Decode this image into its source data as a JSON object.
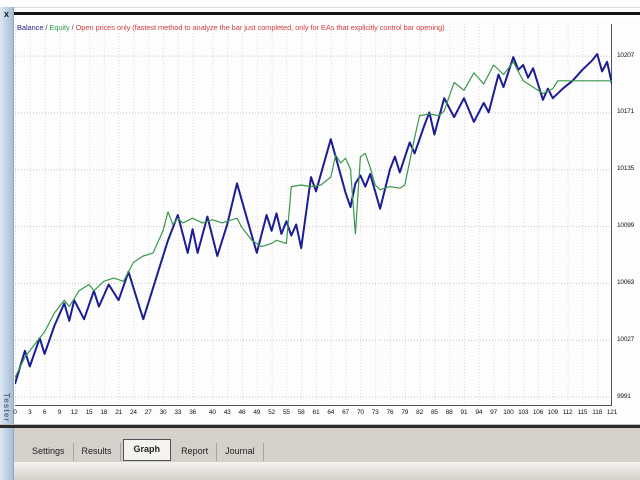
{
  "panel": {
    "side_tab_label": "Tester",
    "close_glyph": "x"
  },
  "legend": {
    "balance_label": "Balance",
    "equity_label": "Equity",
    "separator": " / ",
    "mode_text": "Open prices only (fastest method to analyze the bar just completed, only for EAs that explicitly control bar opening)"
  },
  "colors": {
    "balance": "#1c1c94",
    "equity": "#39984d",
    "mode_text": "#d04040",
    "grid_horizontal": "#c6c6c6",
    "grid_vertical": "#dcdcdc",
    "axis": "#555555"
  },
  "tabs": {
    "items": [
      {
        "label": "Settings",
        "active": false
      },
      {
        "label": "Results",
        "active": false
      },
      {
        "label": "Graph",
        "active": true
      },
      {
        "label": "Report",
        "active": false
      },
      {
        "label": "Journal",
        "active": false
      }
    ]
  },
  "chart_data": {
    "type": "line",
    "xlim": [
      0,
      121
    ],
    "ylim": [
      9985,
      10227
    ],
    "grid": true,
    "legend_position": "top-left",
    "x_ticks": [
      0,
      3,
      6,
      9,
      12,
      15,
      18,
      21,
      24,
      27,
      30,
      33,
      36,
      40,
      43,
      46,
      49,
      52,
      55,
      58,
      61,
      64,
      67,
      70,
      73,
      76,
      79,
      82,
      85,
      88,
      91,
      94,
      97,
      100,
      103,
      106,
      109,
      112,
      115,
      118,
      121
    ],
    "y_ticks": [
      10207,
      10171,
      10135,
      10099,
      10063,
      10027,
      9991
    ],
    "series": [
      {
        "name": "Balance",
        "color": "#1c1c94",
        "width": 2,
        "points": [
          [
            0,
            9999
          ],
          [
            2,
            10020
          ],
          [
            3,
            10010
          ],
          [
            5,
            10028
          ],
          [
            6,
            10018
          ],
          [
            8,
            10036
          ],
          [
            10,
            10050
          ],
          [
            11,
            10039
          ],
          [
            12,
            10052
          ],
          [
            14,
            10040
          ],
          [
            16,
            10058
          ],
          [
            17,
            10048
          ],
          [
            19,
            10062
          ],
          [
            21,
            10052
          ],
          [
            23,
            10070
          ],
          [
            25,
            10050
          ],
          [
            26,
            10040
          ],
          [
            29,
            10070
          ],
          [
            31,
            10090
          ],
          [
            33,
            10106
          ],
          [
            35,
            10082
          ],
          [
            36,
            10097
          ],
          [
            37,
            10082
          ],
          [
            39,
            10105
          ],
          [
            41,
            10080
          ],
          [
            43,
            10100
          ],
          [
            45,
            10126
          ],
          [
            47,
            10104
          ],
          [
            49,
            10082
          ],
          [
            51,
            10106
          ],
          [
            52,
            10096
          ],
          [
            53,
            10107
          ],
          [
            54,
            10094
          ],
          [
            55,
            10102
          ],
          [
            56,
            10093
          ],
          [
            57,
            10100
          ],
          [
            58,
            10085
          ],
          [
            60,
            10130
          ],
          [
            61,
            10121
          ],
          [
            64,
            10154
          ],
          [
            67,
            10120
          ],
          [
            68,
            10111
          ],
          [
            69,
            10126
          ],
          [
            70,
            10131
          ],
          [
            71,
            10124
          ],
          [
            72,
            10132
          ],
          [
            74,
            10110
          ],
          [
            76,
            10135
          ],
          [
            77,
            10143
          ],
          [
            78,
            10133
          ],
          [
            80,
            10152
          ],
          [
            81,
            10145
          ],
          [
            83,
            10163
          ],
          [
            84,
            10171
          ],
          [
            85,
            10157
          ],
          [
            87,
            10180
          ],
          [
            89,
            10168
          ],
          [
            91,
            10180
          ],
          [
            93,
            10165
          ],
          [
            95,
            10177
          ],
          [
            96,
            10171
          ],
          [
            98,
            10195
          ],
          [
            99,
            10187
          ],
          [
            101,
            10206
          ],
          [
            102,
            10198
          ],
          [
            103,
            10201
          ],
          [
            104,
            10193
          ],
          [
            105,
            10199
          ],
          [
            107,
            10179
          ],
          [
            108,
            10186
          ],
          [
            109,
            10180
          ],
          [
            111,
            10186
          ],
          [
            113,
            10191
          ],
          [
            115,
            10198
          ],
          [
            117,
            10204
          ],
          [
            118,
            10208
          ],
          [
            119,
            10197
          ],
          [
            120,
            10203
          ],
          [
            121,
            10189
          ]
        ]
      },
      {
        "name": "Equity",
        "color": "#39984d",
        "width": 1.2,
        "points": [
          [
            0,
            10003
          ],
          [
            2,
            10016
          ],
          [
            4,
            10024
          ],
          [
            6,
            10032
          ],
          [
            8,
            10044
          ],
          [
            10,
            10052
          ],
          [
            11,
            10048
          ],
          [
            13,
            10058
          ],
          [
            15,
            10062
          ],
          [
            16,
            10058
          ],
          [
            18,
            10064
          ],
          [
            20,
            10066
          ],
          [
            22,
            10064
          ],
          [
            24,
            10076
          ],
          [
            26,
            10080
          ],
          [
            28,
            10082
          ],
          [
            30,
            10096
          ],
          [
            31,
            10108
          ],
          [
            32,
            10100
          ],
          [
            33,
            10104
          ],
          [
            34,
            10101
          ],
          [
            36,
            10104
          ],
          [
            38,
            10101
          ],
          [
            40,
            10103
          ],
          [
            42,
            10101
          ],
          [
            44,
            10103
          ],
          [
            45,
            10104
          ],
          [
            46,
            10098
          ],
          [
            48,
            10090
          ],
          [
            50,
            10086
          ],
          [
            52,
            10088
          ],
          [
            53,
            10090
          ],
          [
            55,
            10088
          ],
          [
            56,
            10124
          ],
          [
            58,
            10125
          ],
          [
            60,
            10124
          ],
          [
            62,
            10125
          ],
          [
            64,
            10130
          ],
          [
            65,
            10144
          ],
          [
            66,
            10139
          ],
          [
            67,
            10142
          ],
          [
            68,
            10135
          ],
          [
            69,
            10094
          ],
          [
            70,
            10143
          ],
          [
            71,
            10145
          ],
          [
            72,
            10136
          ],
          [
            73,
            10125
          ],
          [
            74,
            10122
          ],
          [
            76,
            10124
          ],
          [
            78,
            10123
          ],
          [
            79,
            10125
          ],
          [
            80,
            10140
          ],
          [
            81,
            10155
          ],
          [
            82,
            10169
          ],
          [
            84,
            10170
          ],
          [
            86,
            10169
          ],
          [
            87,
            10172
          ],
          [
            89,
            10190
          ],
          [
            91,
            10185
          ],
          [
            93,
            10196
          ],
          [
            95,
            10189
          ],
          [
            97,
            10201
          ],
          [
            99,
            10195
          ],
          [
            101,
            10203
          ],
          [
            103,
            10191
          ],
          [
            105,
            10187
          ],
          [
            107,
            10183
          ],
          [
            109,
            10186
          ],
          [
            110,
            10191
          ],
          [
            121,
            10191
          ]
        ]
      }
    ]
  }
}
